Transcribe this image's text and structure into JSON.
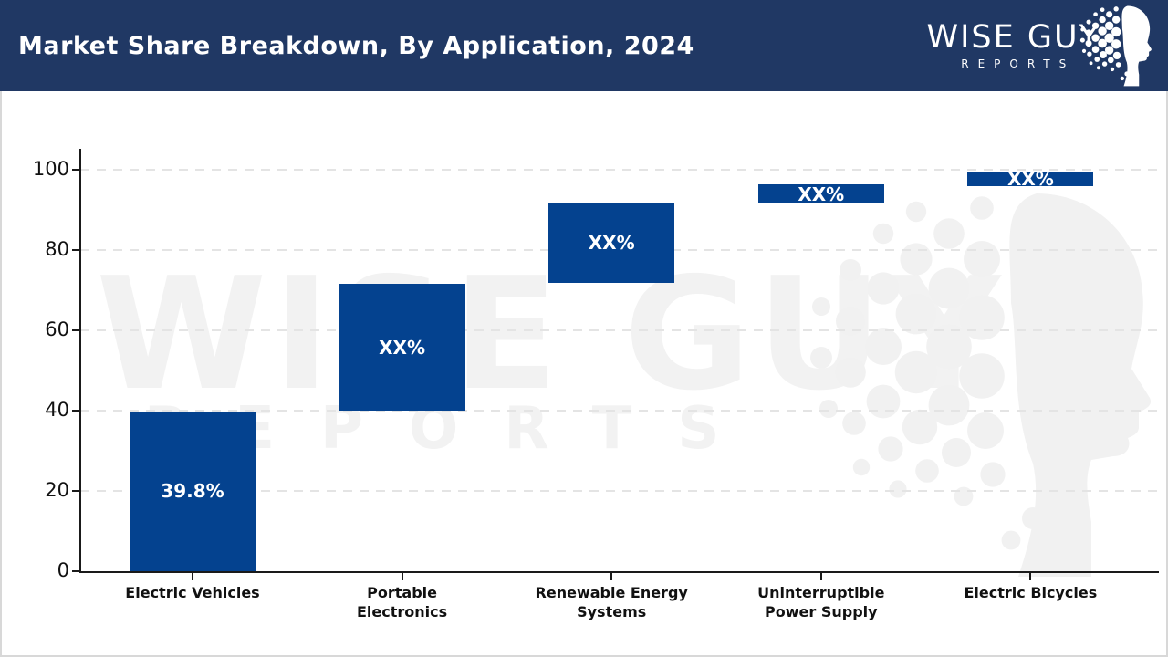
{
  "header": {
    "title": "Market Share Breakdown, By Application, 2024",
    "logo_line1": "WISE GUY",
    "logo_line2": "REPORTS",
    "bg_color": "#203864"
  },
  "watermark": {
    "line1": "WISE GUY",
    "line2": "REPORTS"
  },
  "chart_data": {
    "type": "bar",
    "variant": "waterfall",
    "title": "Market Share Breakdown, By Application, 2024",
    "categories": [
      "Electric Vehicles",
      "Portable Electronics",
      "Renewable Energy Systems",
      "Uninterruptible Power Supply",
      "Electric Bicycles"
    ],
    "category_display": [
      "Electric Vehicles",
      "Portable\nElectronics",
      "Renewable Energy\nSystems",
      "Uninterruptible\nPower Supply",
      "Electric Bicycles"
    ],
    "segments": [
      {
        "category": "Electric Vehicles",
        "start": 0,
        "end": 39.8,
        "label": "39.8%"
      },
      {
        "category": "Portable Electronics",
        "start": 40,
        "end": 71.5,
        "label": "XX%"
      },
      {
        "category": "Renewable Energy Systems",
        "start": 71.9,
        "end": 91.8,
        "label": "XX%"
      },
      {
        "category": "Uninterruptible Power Supply",
        "start": 91.6,
        "end": 96.3,
        "label": "XX%"
      },
      {
        "category": "Electric Bicycles",
        "start": 96.0,
        "end": 99.5,
        "label": "XX%"
      }
    ],
    "yticks": [
      0,
      20,
      40,
      60,
      80,
      100
    ],
    "ylim": [
      0,
      105
    ],
    "bar_color": "#04428f",
    "value_label_color": "#ffffff",
    "grid": {
      "axis": "y",
      "style": "dashed",
      "color": "#e4e4e4"
    },
    "legend": "none",
    "xlabel": "",
    "ylabel": ""
  }
}
